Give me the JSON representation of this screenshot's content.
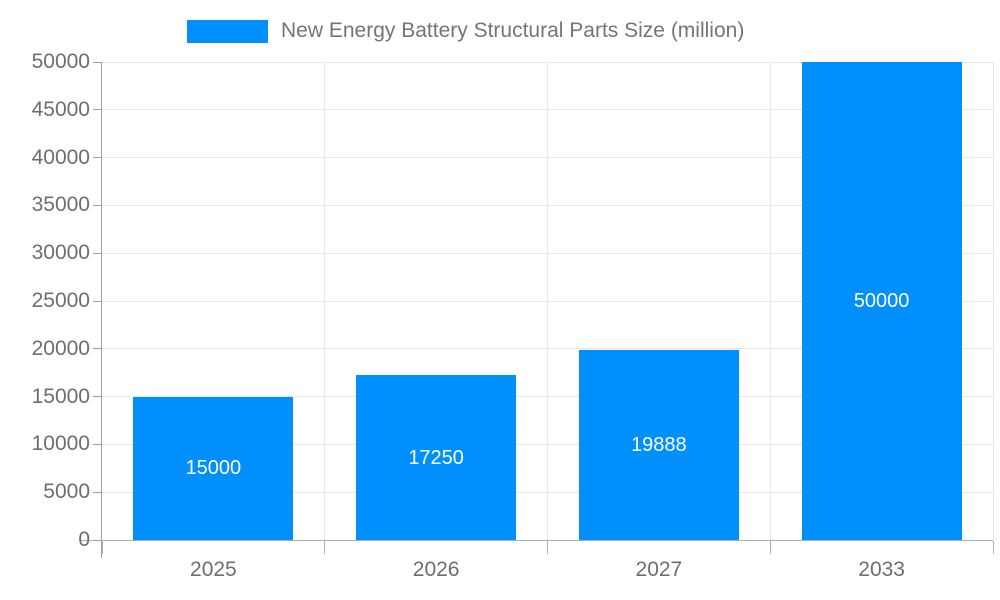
{
  "legend": {
    "label": "New Energy Battery Structural Parts Size (million)",
    "swatch_color": "#008FFB"
  },
  "chart_data": {
    "type": "bar",
    "title": "",
    "xlabel": "",
    "ylabel": "",
    "categories": [
      "2025",
      "2026",
      "2027",
      "2033"
    ],
    "values": [
      15000,
      17250,
      19888,
      50000
    ],
    "series_name": "New Energy Battery Structural Parts Size (million)",
    "data_labels": [
      "15000",
      "17250",
      "19888",
      "50000"
    ],
    "ylim": [
      0,
      50000
    ],
    "ytick_step": 5000,
    "ytick_labels": [
      "0",
      "5000",
      "10000",
      "15000",
      "20000",
      "25000",
      "30000",
      "35000",
      "40000",
      "45000",
      "50000"
    ],
    "grid": true,
    "legend_position": "top",
    "bar_color": "#008FFB",
    "data_label_color": "#ffffff",
    "axis_label_color": "#6e6e6e",
    "gridline_color": "#e7e7e7"
  }
}
